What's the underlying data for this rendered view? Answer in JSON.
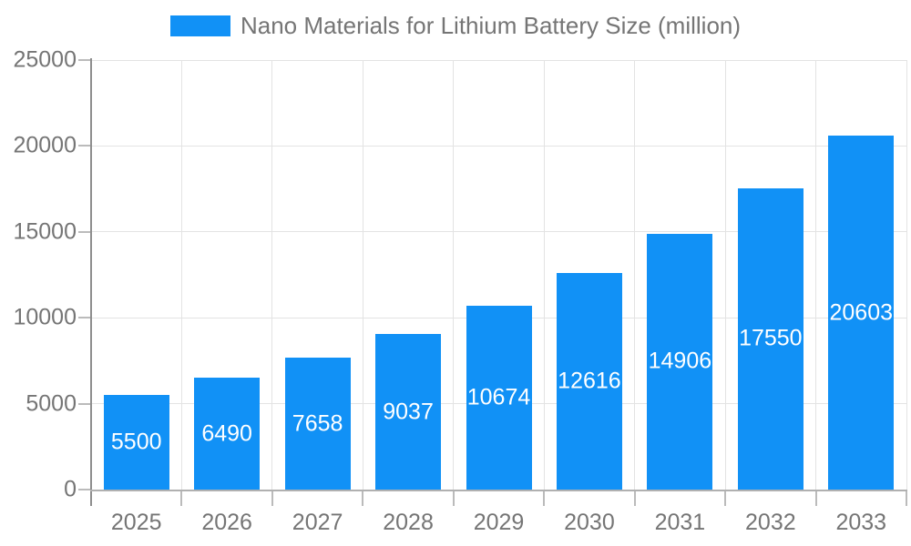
{
  "legend": {
    "label": "Nano Materials for Lithium Battery Size (million)"
  },
  "colors": {
    "bar": "#1191f6",
    "bar_label": "#ffffff",
    "axis_text": "#757575",
    "grid": "#e3e3e3",
    "y_axis_line": "#8e8e8e",
    "x_axis_line": "#b0b0b0",
    "tick": "#bbbbbb",
    "background": "#ffffff"
  },
  "chart_data": {
    "type": "bar",
    "title": "Nano Materials for Lithium Battery Size (million)",
    "categories": [
      "2025",
      "2026",
      "2027",
      "2028",
      "2029",
      "2030",
      "2031",
      "2032",
      "2033"
    ],
    "values": [
      5500,
      6490,
      7658,
      9037,
      10674,
      12616,
      14906,
      17550,
      20603
    ],
    "xlabel": "",
    "ylabel": "",
    "ylim": [
      0,
      25000
    ],
    "ytick_step": 5000,
    "ytick_labels": [
      "0",
      "5000",
      "10000",
      "15000",
      "20000",
      "25000"
    ],
    "grid": true,
    "legend_position": "top",
    "bar_label_position": "inside-center"
  }
}
